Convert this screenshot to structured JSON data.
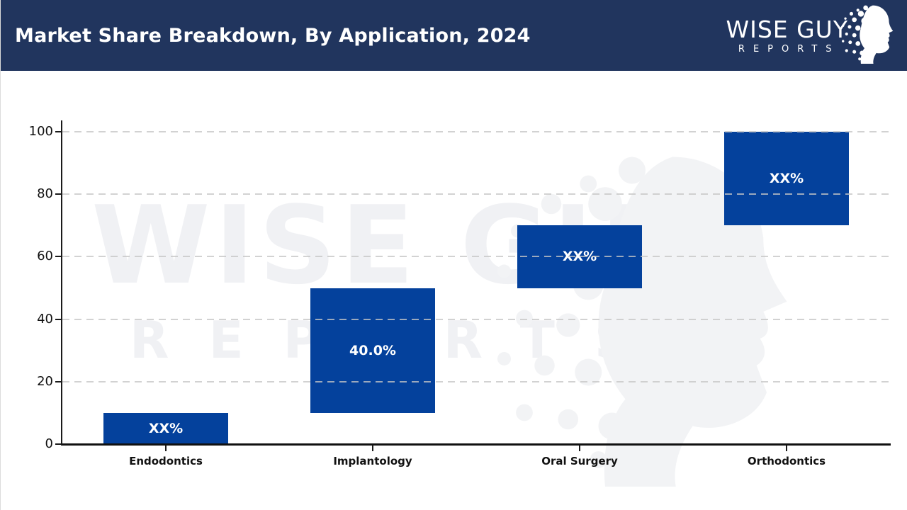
{
  "header": {
    "title": "Market Share Breakdown, By Application, 2024",
    "logo": {
      "name": "WISE GUY",
      "tagline": "REPORTS"
    }
  },
  "watermark": {
    "line1": "WISE GUY",
    "line2": "REPORTS"
  },
  "colors": {
    "header_bg": "#21355E",
    "bar": "#04419C",
    "grid": "#d8d8d8",
    "axis": "#1a1a1a",
    "bar_label_text": "#ffffff",
    "watermark": "#f0f1f4"
  },
  "chart_data": {
    "type": "bar",
    "subtype": "waterfall",
    "title": "Market Share Breakdown, By Application, 2024",
    "categories": [
      "Endodontics",
      "Implantology",
      "Oral Surgery",
      "Orthodontics"
    ],
    "segments": [
      {
        "category": "Endodontics",
        "start": 0,
        "end": 10,
        "value": 10,
        "label": "XX%"
      },
      {
        "category": "Implantology",
        "start": 10,
        "end": 50,
        "value": 40,
        "label": "40.0%"
      },
      {
        "category": "Oral Surgery",
        "start": 50,
        "end": 70,
        "value": 20,
        "label": "XX%"
      },
      {
        "category": "Orthodontics",
        "start": 70,
        "end": 100,
        "value": 30,
        "label": "XX%"
      }
    ],
    "xlabel": "",
    "ylabel": "",
    "ylim": [
      0,
      100
    ],
    "yticks": [
      0,
      20,
      40,
      60,
      80,
      100
    ],
    "grid": "dashed-horizontal",
    "legend": "none",
    "bar_color": "#04419C"
  }
}
